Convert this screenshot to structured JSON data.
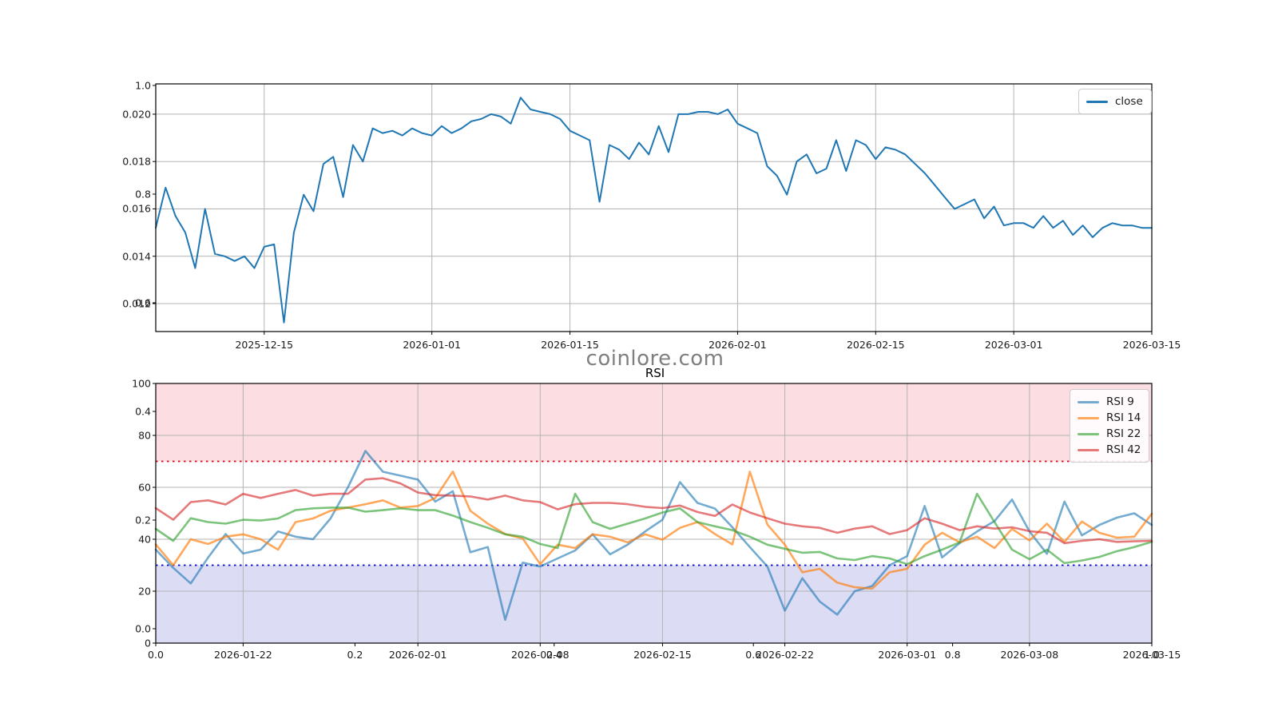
{
  "watermark": "coinlore.com",
  "colors": {
    "close": "#1f77b4",
    "rsi9": "rgba(31,119,180,0.62)",
    "rsi14": "rgba(255,127,14,0.68)",
    "rsi22": "rgba(44,160,44,0.62)",
    "rsi42": "rgba(214,39,40,0.62)",
    "grid": "#b3b3b3",
    "spine": "#000000",
    "overbought_band": "#fbdde2",
    "oversold_band": "#dcdcf5",
    "overbought_line": "#dc0010",
    "oversold_line": "#0000cc",
    "watermark_color": "#7f7f7f"
  },
  "chart_data": [
    {
      "type": "line",
      "x_range": [
        "2025-12-04",
        "2026-03-15"
      ],
      "x_interval": "daily",
      "x_tick_labels": [
        "2025-12-15",
        "2026-01-01",
        "2026-01-15",
        "2026-02-01",
        "2026-02-15",
        "2026-03-01",
        "2026-03-15"
      ],
      "x_tick_days": [
        11,
        28,
        42,
        59,
        73,
        87,
        101
      ],
      "y_tick_labels": [
        "0.020",
        "0.018",
        "0.016",
        "0.014",
        "0.012"
      ],
      "overlay_y_tick_labels": [
        "1.0",
        "0.8",
        "0.6"
      ],
      "ylim": [
        0.01082,
        0.02128
      ],
      "legend": [
        "close"
      ],
      "series": [
        {
          "name": "close",
          "color_key": "close",
          "values": [
            0.0152,
            0.0169,
            0.0157,
            0.015,
            0.0135,
            0.016,
            0.0141,
            0.014,
            0.0138,
            0.014,
            0.0135,
            0.0144,
            0.0145,
            0.0112,
            0.015,
            0.0166,
            0.0159,
            0.0179,
            0.0182,
            0.0165,
            0.0187,
            0.018,
            0.0194,
            0.0192,
            0.0193,
            0.0191,
            0.0194,
            0.0192,
            0.0191,
            0.0195,
            0.0192,
            0.0194,
            0.0197,
            0.0198,
            0.02,
            0.0199,
            0.0196,
            0.0207,
            0.0202,
            0.0201,
            0.02,
            0.0198,
            0.0193,
            0.0191,
            0.0189,
            0.0163,
            0.0187,
            0.0185,
            0.0181,
            0.0188,
            0.0183,
            0.0195,
            0.0184,
            0.02,
            0.02,
            0.0201,
            0.0201,
            0.02,
            0.0202,
            0.0196,
            0.0194,
            0.0192,
            0.0178,
            0.0174,
            0.0166,
            0.018,
            0.0183,
            0.0175,
            0.0177,
            0.0189,
            0.0176,
            0.0189,
            0.0187,
            0.0181,
            0.0186,
            0.0185,
            0.0183,
            0.0179,
            0.0175,
            0.017,
            0.0165,
            0.016,
            0.0162,
            0.0164,
            0.0156,
            0.0161,
            0.0153,
            0.0154,
            0.0154,
            0.0152,
            0.0157,
            0.0152,
            0.0155,
            0.0149,
            0.0153,
            0.0148,
            0.0152,
            0.0154,
            0.0153,
            0.0153,
            0.0152,
            0.0152
          ]
        }
      ]
    },
    {
      "type": "line",
      "title": "RSI",
      "x_range": [
        "2026-01-17",
        "2026-03-15"
      ],
      "x_interval": "daily",
      "x_tick_labels": [
        "2026-01-22",
        "2026-02-01",
        "2026-02-08",
        "2026-02-15",
        "2026-02-22",
        "2026-03-01",
        "2026-03-08",
        "2026-03-15"
      ],
      "x_tick_days": [
        5,
        15,
        22,
        29,
        36,
        43,
        50,
        57
      ],
      "y_tick_labels": [
        "100",
        "80",
        "60",
        "40",
        "20",
        "0"
      ],
      "overlay_y_tick_labels": [
        "0.4",
        "0.2",
        "0.0"
      ],
      "overlay_x_tick_labels": [
        "0.0",
        "0.2",
        "0.4",
        "0.6",
        "0.8",
        "1.0"
      ],
      "ylim": [
        0,
        100
      ],
      "overbought": 70,
      "oversold": 30,
      "legend": [
        "RSI 9",
        "RSI 14",
        "RSI 22",
        "RSI 42"
      ],
      "series": [
        {
          "name": "RSI 9",
          "color_key": "rsi9",
          "values": [
            36,
            29,
            23,
            33,
            42,
            34.5,
            36,
            43,
            41,
            40,
            48,
            60,
            74,
            66,
            64.5,
            63,
            54.5,
            58.5,
            35,
            37,
            9,
            31,
            29.5,
            32.6,
            35.7,
            41.9,
            34.2,
            37.9,
            43,
            47.5,
            62,
            54,
            51.8,
            44.6,
            37,
            29.5,
            12.5,
            25,
            16,
            11,
            20,
            22,
            30,
            33.5,
            52.8,
            33,
            38.5,
            43,
            47,
            55.3,
            43,
            34.4,
            54.5,
            41.5,
            45.5,
            48.3,
            50,
            45.5
          ]
        },
        {
          "name": "RSI 14",
          "color_key": "rsi14",
          "values": [
            38,
            30,
            40,
            38.2,
            41,
            41.9,
            40,
            36,
            46.6,
            48,
            51,
            52.2,
            53.5,
            55,
            52.2,
            52.8,
            55.9,
            66.1,
            51,
            46,
            42,
            40.3,
            30.4,
            37.9,
            36.6,
            41.9,
            41,
            38.8,
            41.9,
            39.8,
            44.4,
            46.6,
            42,
            38,
            66,
            45.7,
            37.9,
            27.3,
            28.6,
            23.3,
            21.5,
            21,
            27.3,
            28.6,
            37.9,
            42.5,
            38.8,
            41,
            36.6,
            44,
            39.5,
            46,
            39,
            46.8,
            42.5,
            40.6,
            41,
            49.8
          ]
        },
        {
          "name": "RSI 22",
          "color_key": "rsi22",
          "values": [
            44,
            39.4,
            48.1,
            46.6,
            46,
            47.5,
            47.2,
            48,
            51.2,
            51.9,
            52.2,
            52.2,
            50.6,
            51.2,
            51.9,
            51.2,
            51.2,
            49.1,
            46.6,
            44.4,
            41.9,
            41,
            38.2,
            36.6,
            57.5,
            46.6,
            44,
            46,
            48,
            50.3,
            51.9,
            46.6,
            45,
            43.5,
            41,
            37.9,
            36.3,
            34.8,
            35.1,
            32.6,
            32,
            33.5,
            32.6,
            30.4,
            33.5,
            36,
            38.8,
            57.5,
            46.6,
            36,
            32.3,
            36,
            30.8,
            31.8,
            33.2,
            35.4,
            37,
            39
          ]
        },
        {
          "name": "RSI 42",
          "color_key": "rsi42",
          "values": [
            52,
            47.5,
            54.3,
            55,
            53.4,
            57.5,
            55.9,
            57.5,
            59,
            56.8,
            57.5,
            57.5,
            63,
            63.5,
            61.5,
            58,
            57,
            56.8,
            56.5,
            55.3,
            56.8,
            55,
            54.3,
            51.5,
            53.5,
            54,
            54,
            53.5,
            52.5,
            52,
            53,
            50.5,
            49,
            53.4,
            50.3,
            48.1,
            46,
            45,
            44.4,
            42.5,
            44.1,
            45,
            42,
            43.5,
            48.1,
            46,
            43.5,
            45,
            44.1,
            44.6,
            43.1,
            42.5,
            38.5,
            39.4,
            40,
            39,
            39.2,
            39.4
          ]
        }
      ]
    }
  ]
}
